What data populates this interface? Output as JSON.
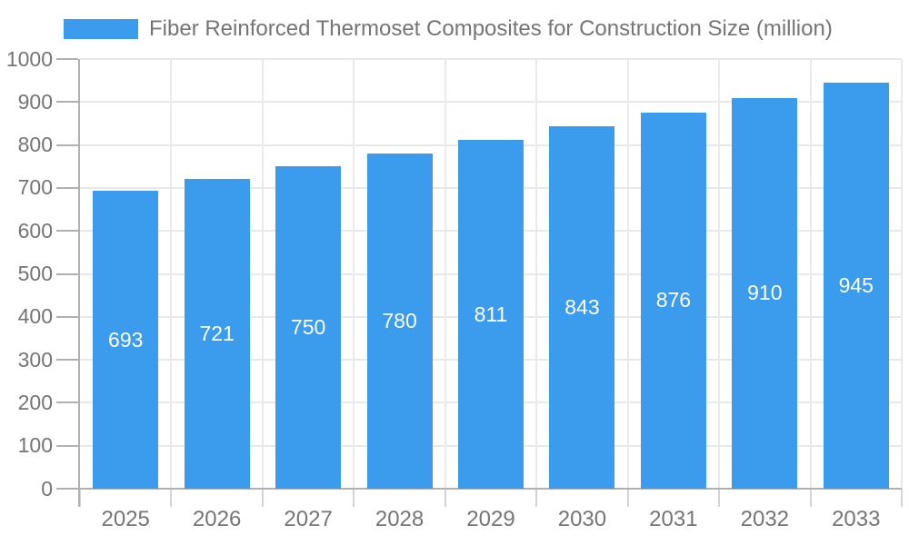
{
  "chart": {
    "legend": {
      "label": "Fiber Reinforced Thermoset Composites for Construction Size (million)"
    }
  },
  "chart_data": {
    "type": "bar",
    "title": "Fiber Reinforced Thermoset Composites for Construction Size (million)",
    "categories": [
      "2025",
      "2026",
      "2027",
      "2028",
      "2029",
      "2030",
      "2031",
      "2032",
      "2033"
    ],
    "values": [
      693,
      721,
      750,
      780,
      811,
      843,
      876,
      910,
      945
    ],
    "xlabel": "",
    "ylabel": "",
    "ylim": [
      0,
      1000
    ],
    "ytick_step": 100,
    "grid": true,
    "legend_position": "top-left",
    "bar_value_labels": "inside-center",
    "colors": {
      "bar": "#3b9bec",
      "bar_label": "#ffffff",
      "axis": "#b0b0b0",
      "grid": "#e8e8e8",
      "tick": "#c9c9c9",
      "text": "#757575",
      "background": "#ffffff"
    }
  }
}
